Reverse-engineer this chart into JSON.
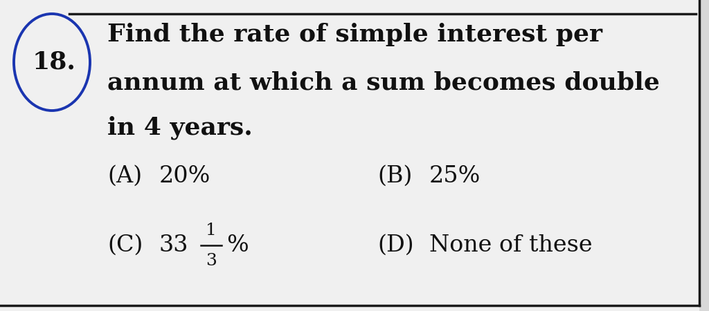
{
  "background_color": "#d8d8d8",
  "content_bg": "#f0f0f0",
  "line_color": "#1a1a1a",
  "question_number": "18.",
  "question_line1": "Find the rate of simple interest per",
  "question_line2": "annum at which a sum becomes double",
  "question_line3": "in 4 years.",
  "option_A_label": "(A)",
  "option_A_text": "20%",
  "option_B_label": "(B)",
  "option_B_text": "25%",
  "option_C_label": "(C)",
  "option_C_whole": "33",
  "option_C_numerator": "1",
  "option_C_denominator": "3",
  "option_C_percent": "%",
  "option_D_label": "(D)",
  "option_D_text": "None of these",
  "circle_color": "#1a35b0",
  "text_color": "#111111",
  "font_size_question": 26,
  "font_size_options": 24,
  "font_size_number": 26
}
